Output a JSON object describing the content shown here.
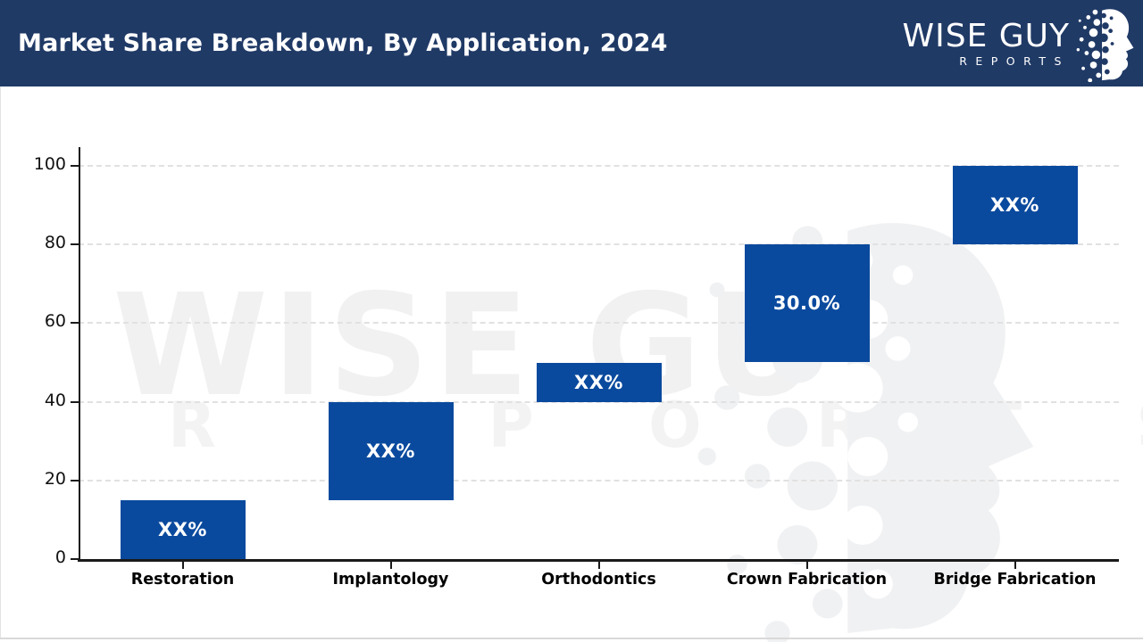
{
  "header": {
    "bg": "#203a66",
    "title": "Market Share Breakdown, By Application, 2024",
    "logo": {
      "wordmark": "WISE GUY",
      "subtext": "REPORTS"
    }
  },
  "watermark": {
    "wordmark": "WISE GUY",
    "subtext": "R E P O R T S"
  },
  "chart_data": {
    "type": "bar",
    "subtype": "floating-waterfall-segments",
    "title": "Market Share Breakdown, By Application, 2024",
    "categories": [
      "Restoration",
      "Implantology",
      "Orthodontics",
      "Crown Fabrication",
      "Bridge Fabrication"
    ],
    "series": [
      {
        "name": "Market Share (%)",
        "segments": [
          {
            "category": "Restoration",
            "start": 0,
            "end": 15,
            "label": "XX%"
          },
          {
            "category": "Implantology",
            "start": 15,
            "end": 40,
            "label": "XX%"
          },
          {
            "category": "Orthodontics",
            "start": 40,
            "end": 50,
            "label": "XX%"
          },
          {
            "category": "Crown Fabrication",
            "start": 50,
            "end": 80,
            "label": "30.0%"
          },
          {
            "category": "Bridge Fabrication",
            "start": 80,
            "end": 100,
            "label": "XX%"
          }
        ]
      }
    ],
    "xlabel": "",
    "ylabel": "",
    "ylim": [
      0,
      105
    ],
    "yticks": [
      0,
      20,
      40,
      60,
      80,
      100
    ],
    "grid": "horizontal-dashed",
    "legend": "none",
    "bar_color": "#0a4a9e",
    "bar_label_color": "#ffffff",
    "axis_color": "#1a1a1a",
    "gridline_color": "#e1e1e1"
  }
}
